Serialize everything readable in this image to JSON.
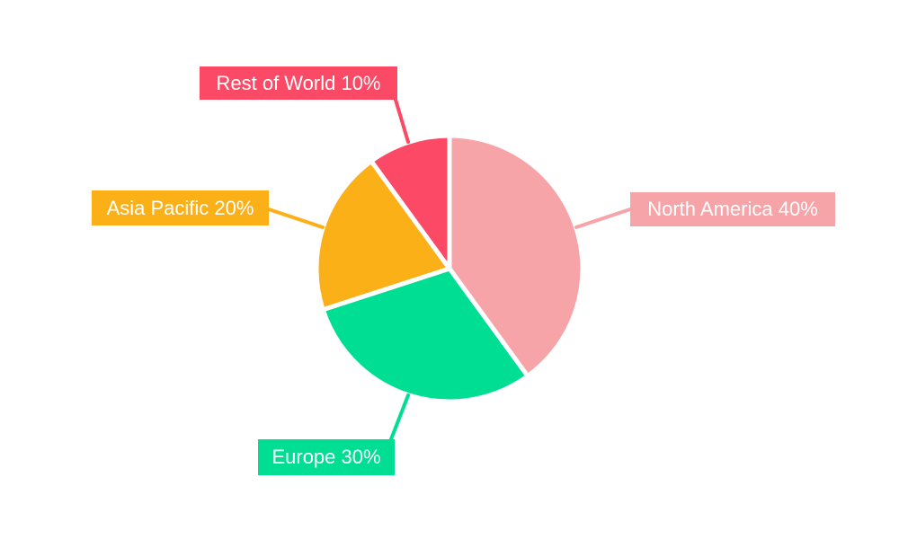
{
  "chart_data": {
    "type": "pie",
    "direction": "clockwise",
    "start_angle_deg": 0,
    "unit": "%",
    "background_color": "#FFFFFF",
    "label_style": "colored-badges-with-leader-lines",
    "label_text_color": "#FFFFFF",
    "legend_position": "none",
    "slices": [
      {
        "id": "north-america",
        "label": "North America",
        "value": 40,
        "display_label": "North America 40%",
        "color": "#F7A4A9"
      },
      {
        "id": "europe",
        "label": "Europe",
        "value": 30,
        "display_label": "Europe 30%",
        "color": "#00DE94"
      },
      {
        "id": "asia-pacific",
        "label": "Asia Pacific",
        "value": 20,
        "display_label": "Asia Pacific 20%",
        "color": "#FBB018"
      },
      {
        "id": "rest-of-world",
        "label": "Rest of World",
        "value": 10,
        "display_label": "Rest of World 10%",
        "color": "#FC4A66"
      }
    ]
  }
}
